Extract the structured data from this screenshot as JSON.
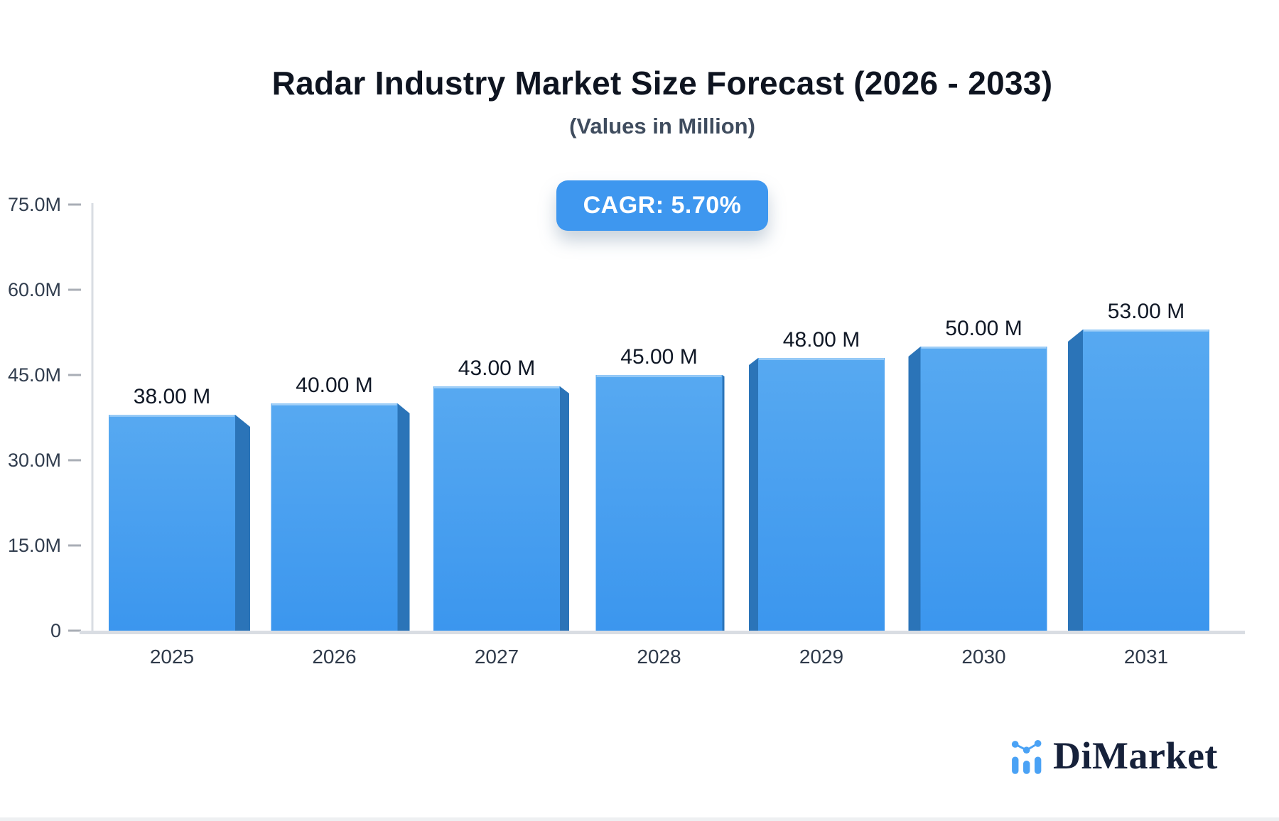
{
  "chart": {
    "title": "Radar Industry Market Size Forecast (2026 - 2033)",
    "subtitle": "(Values in Million)",
    "cagr_label": "CAGR: 5.70%"
  },
  "logo": {
    "text": "DiMarket",
    "icon_color": "#4aa2f5",
    "text_color": "#16213a"
  },
  "chart_data": {
    "type": "bar",
    "title": "Radar Industry Market Size Forecast (2026 - 2033)",
    "subtitle": "(Values in Million)",
    "xlabel": "",
    "ylabel": "",
    "categories": [
      "2025",
      "2026",
      "2027",
      "2028",
      "2029",
      "2030",
      "2031"
    ],
    "values": [
      38,
      40,
      43,
      45,
      48,
      50,
      53
    ],
    "value_labels": [
      "38.00 M",
      "40.00 M",
      "43.00 M",
      "45.00 M",
      "48.00 M",
      "50.00 M",
      "53.00 M"
    ],
    "ylim": [
      0,
      75
    ],
    "yticks": [
      0,
      15,
      30,
      45,
      60,
      75
    ],
    "ytick_labels": [
      "0",
      "15.0M",
      "30.0M",
      "45.0M",
      "60.0M",
      "75.0M"
    ],
    "grid": false,
    "legend": false,
    "accent": "#3e97ef",
    "bar_color_top": "#57a9f1",
    "bar_color_bottom": "#3b96ee",
    "bar_side_color": "#2b74b8",
    "axis_line_color": "#d9dde3",
    "tick_color": "#a9aeb6",
    "tick_label_color": "#323e4f",
    "value_label_color": "#101826",
    "category_label_color": "#2e3949"
  }
}
